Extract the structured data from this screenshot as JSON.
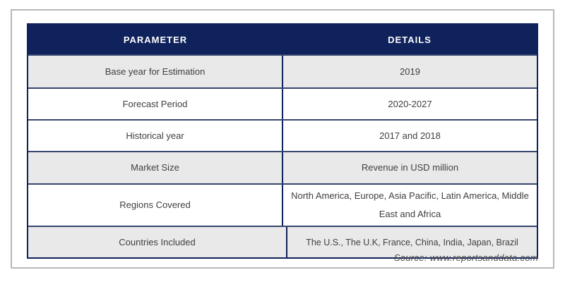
{
  "chart_data": {
    "type": "table",
    "columns": [
      "PARAMETER",
      "DETAILS"
    ],
    "rows": [
      [
        "Base year for Estimation",
        "2019"
      ],
      [
        "Forecast Period",
        "2020-2027"
      ],
      [
        "Historical year",
        "2017 and 2018"
      ],
      [
        "Market Size",
        "Revenue in USD million"
      ],
      [
        "Regions Covered",
        "North America, Europe, Asia Pacific, Latin America, Middle East and Africa"
      ],
      [
        "Countries Included",
        "The U.S., The U.K, France, China, India, Japan, Brazil"
      ]
    ],
    "source": "Source: www.reportsanddata.com",
    "legend_position": "none",
    "grid": "table-borders"
  },
  "colors": {
    "header_bg": "#10225c",
    "header_text": "#ffffff",
    "table_border": "#10225c",
    "row_border": "#36466f",
    "row_bg": "#ffffff",
    "row_shaded_bg": "#e9e9e9",
    "body_text": "#3f3f3f",
    "source_text": "#4a4a4a",
    "frame_border": "#b8b8b8"
  }
}
